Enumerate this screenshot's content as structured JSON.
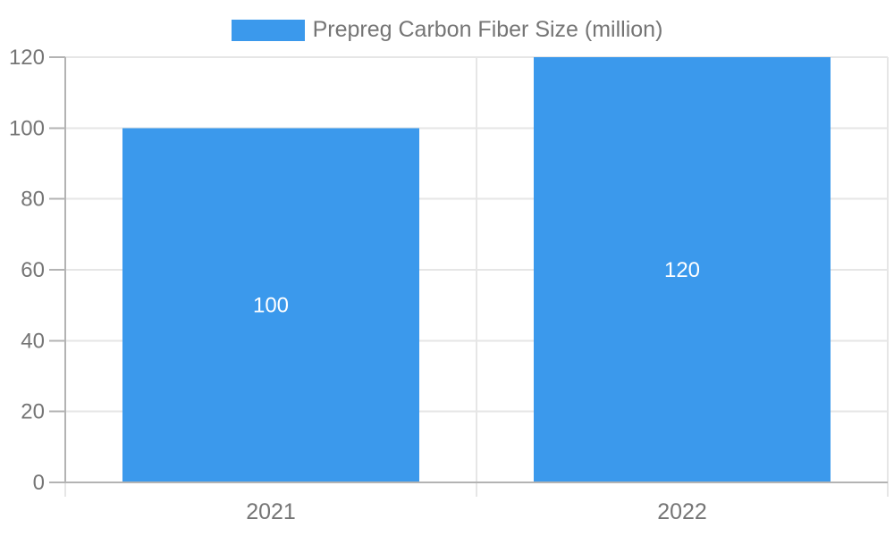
{
  "chart_data": {
    "type": "bar",
    "title": "",
    "legend": {
      "label": "Prepreg Carbon Fiber Size (million)",
      "position": "top"
    },
    "categories": [
      "2021",
      "2022"
    ],
    "series": [
      {
        "name": "Prepreg Carbon Fiber Size (million)",
        "values": [
          100,
          120
        ]
      }
    ],
    "data_labels": [
      "100",
      "120"
    ],
    "yticks": [
      0,
      20,
      40,
      60,
      80,
      100,
      120
    ],
    "ylim": [
      0,
      120
    ],
    "xlabel": "",
    "ylabel": "",
    "grid": true,
    "colors": {
      "bar": "#3b99ec",
      "gridline": "#e6e6e6",
      "axis_border": "#b3b3b3",
      "tick_label": "#757575",
      "data_label": "#ffffff"
    }
  }
}
